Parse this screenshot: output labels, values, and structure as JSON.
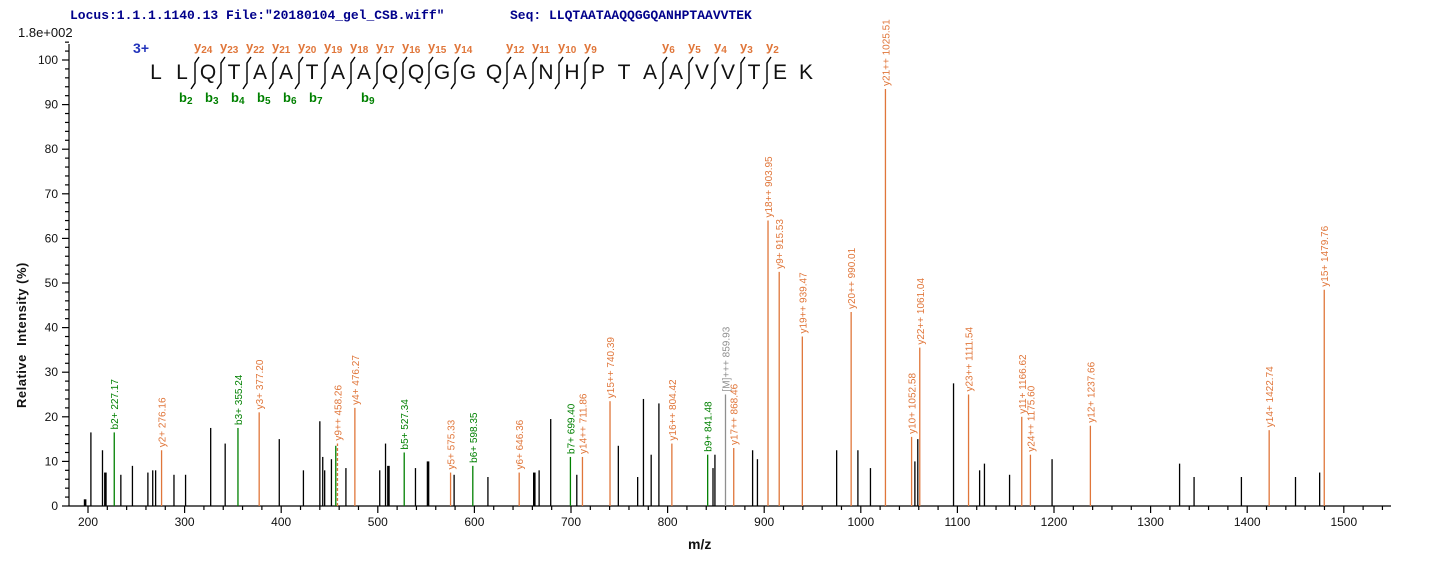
{
  "header": {
    "locus": "Locus:1.1.1.1140.13 File:\"20180104_gel_CSB.wiff\"",
    "seq": "Seq: LLQTAATAAQQGGQANHPTAAVVTEK"
  },
  "axes": {
    "max_label": "1.8e+002",
    "y_title": "Relative  Intensity (%)",
    "x_title": "m/z",
    "x_ticks": [
      200,
      300,
      400,
      500,
      600,
      700,
      800,
      900,
      1000,
      1100,
      1200,
      1300,
      1400,
      1500
    ],
    "y_ticks": [
      0,
      10,
      20,
      30,
      40,
      50,
      60,
      70,
      80,
      90,
      100
    ]
  },
  "colors": {
    "black": "#000000",
    "orange": "#e0763a",
    "green": "#008000",
    "gray": "#8f8f8f",
    "header": "#00008b",
    "charge": "#2233bb",
    "letter": "#111111"
  },
  "ladder": {
    "charge": "3+",
    "residues": [
      "L",
      "L",
      "Q",
      "T",
      "A",
      "A",
      "T",
      "A",
      "A",
      "Q",
      "Q",
      "G",
      "G",
      "Q",
      "A",
      "N",
      "H",
      "P",
      "T",
      "A",
      "A",
      "V",
      "V",
      "T",
      "E",
      "K"
    ],
    "y_ions": [
      {
        "num": 24,
        "cut": 2
      },
      {
        "num": 23,
        "cut": 3
      },
      {
        "num": 22,
        "cut": 4
      },
      {
        "num": 21,
        "cut": 5
      },
      {
        "num": 20,
        "cut": 6
      },
      {
        "num": 19,
        "cut": 7
      },
      {
        "num": 18,
        "cut": 8
      },
      {
        "num": 17,
        "cut": 9
      },
      {
        "num": 16,
        "cut": 10
      },
      {
        "num": 15,
        "cut": 11
      },
      {
        "num": 14,
        "cut": 12
      },
      {
        "num": 12,
        "cut": 14
      },
      {
        "num": 11,
        "cut": 15
      },
      {
        "num": 10,
        "cut": 16
      },
      {
        "num": 9,
        "cut": 17
      },
      {
        "num": 6,
        "cut": 20
      },
      {
        "num": 5,
        "cut": 21
      },
      {
        "num": 4,
        "cut": 22
      },
      {
        "num": 3,
        "cut": 23
      },
      {
        "num": 2,
        "cut": 24
      }
    ],
    "b_ions": [
      {
        "num": 2,
        "cut": 2
      },
      {
        "num": 3,
        "cut": 3
      },
      {
        "num": 4,
        "cut": 4
      },
      {
        "num": 5,
        "cut": 5
      },
      {
        "num": 6,
        "cut": 6
      },
      {
        "num": 7,
        "cut": 7
      },
      {
        "num": 9,
        "cut": 9
      }
    ]
  },
  "chart_data": {
    "type": "bar",
    "subtype": "ms2-stick-spectrum",
    "title": "",
    "xlabel": "m/z",
    "ylabel": "Relative  Intensity (%)",
    "xlim": [
      180,
      1550
    ],
    "ylim": [
      0,
      100
    ],
    "max_intensity_label": "1.8e+002",
    "peptide": "LLQTAATAAQQGGQANHPTAAVVTEK",
    "precursor_charge": "3+",
    "peaks": [
      {
        "mz": 197,
        "i": 1.5,
        "c": "black",
        "thick": true
      },
      {
        "mz": 203,
        "i": 16.5,
        "c": "black"
      },
      {
        "mz": 215,
        "i": 12.5,
        "c": "black"
      },
      {
        "mz": 218,
        "i": 7.5,
        "c": "black",
        "thick": true
      },
      {
        "mz": 227.17,
        "i": 16.5,
        "c": "green",
        "label": "b2+ 227.17"
      },
      {
        "mz": 234,
        "i": 7,
        "c": "black"
      },
      {
        "mz": 246,
        "i": 9,
        "c": "black"
      },
      {
        "mz": 262,
        "i": 7.5,
        "c": "black"
      },
      {
        "mz": 267,
        "i": 8,
        "c": "black"
      },
      {
        "mz": 270,
        "i": 8,
        "c": "black"
      },
      {
        "mz": 276.16,
        "i": 12.5,
        "c": "orange",
        "label": "y2+ 276.16"
      },
      {
        "mz": 289,
        "i": 7,
        "c": "black"
      },
      {
        "mz": 301,
        "i": 7,
        "c": "black"
      },
      {
        "mz": 327,
        "i": 17.5,
        "c": "black"
      },
      {
        "mz": 342,
        "i": 14,
        "c": "black"
      },
      {
        "mz": 355.24,
        "i": 17.5,
        "c": "green",
        "label": "b3+ 355.24"
      },
      {
        "mz": 377.2,
        "i": 21,
        "c": "orange",
        "label": "y3+ 377.20"
      },
      {
        "mz": 398,
        "i": 15,
        "c": "black"
      },
      {
        "mz": 423,
        "i": 8,
        "c": "black"
      },
      {
        "mz": 440,
        "i": 19,
        "c": "black"
      },
      {
        "mz": 443,
        "i": 11,
        "c": "black"
      },
      {
        "mz": 445,
        "i": 8,
        "c": "black"
      },
      {
        "mz": 452,
        "i": 10.5,
        "c": "black"
      },
      {
        "mz": 456.5,
        "i": 13.5,
        "c": "green"
      },
      {
        "mz": 458.26,
        "i": 14,
        "c": "orange",
        "label": "y9++ 458.26",
        "dashed": true
      },
      {
        "mz": 467,
        "i": 8.5,
        "c": "black"
      },
      {
        "mz": 476.27,
        "i": 22,
        "c": "orange",
        "label": "y4+ 476.27"
      },
      {
        "mz": 502,
        "i": 8,
        "c": "black"
      },
      {
        "mz": 508,
        "i": 14,
        "c": "black"
      },
      {
        "mz": 511,
        "i": 9,
        "c": "black",
        "thick": true
      },
      {
        "mz": 527.34,
        "i": 12,
        "c": "green",
        "label": "b5+ 527.34"
      },
      {
        "mz": 539,
        "i": 8.5,
        "c": "black"
      },
      {
        "mz": 552,
        "i": 10,
        "c": "black",
        "thick": true
      },
      {
        "mz": 575.33,
        "i": 7.5,
        "c": "orange",
        "label": "y5+ 575.33"
      },
      {
        "mz": 579,
        "i": 7,
        "c": "black"
      },
      {
        "mz": 598.35,
        "i": 9,
        "c": "green",
        "label": "b6+ 598.35"
      },
      {
        "mz": 614,
        "i": 6.5,
        "c": "black"
      },
      {
        "mz": 646.36,
        "i": 7.5,
        "c": "orange",
        "label": "y6+ 646.36"
      },
      {
        "mz": 662,
        "i": 7.5,
        "c": "black",
        "thick": true
      },
      {
        "mz": 667,
        "i": 8,
        "c": "black"
      },
      {
        "mz": 679,
        "i": 19.5,
        "c": "black"
      },
      {
        "mz": 699.4,
        "i": 11,
        "c": "green",
        "label": "b7+ 699.40"
      },
      {
        "mz": 706,
        "i": 7,
        "c": "black"
      },
      {
        "mz": 711.86,
        "i": 11,
        "c": "orange",
        "label": "y14++ 711.86"
      },
      {
        "mz": 740.39,
        "i": 23.5,
        "c": "orange",
        "label": "y15++ 740.39"
      },
      {
        "mz": 749,
        "i": 13.5,
        "c": "black"
      },
      {
        "mz": 769,
        "i": 6.5,
        "c": "black"
      },
      {
        "mz": 775,
        "i": 24,
        "c": "black"
      },
      {
        "mz": 783,
        "i": 11.5,
        "c": "black"
      },
      {
        "mz": 791,
        "i": 23,
        "c": "black"
      },
      {
        "mz": 804.42,
        "i": 14,
        "c": "orange",
        "label": "y16++ 804.42"
      },
      {
        "mz": 841.48,
        "i": 11.5,
        "c": "green",
        "label": "b9+ 841.48"
      },
      {
        "mz": 847,
        "i": 8.5,
        "c": "black"
      },
      {
        "mz": 849,
        "i": 11.5,
        "c": "black"
      },
      {
        "mz": 859.93,
        "i": 25,
        "c": "gray",
        "label": "[M]+++ 859.93"
      },
      {
        "mz": 868.46,
        "i": 13,
        "c": "orange",
        "label": "y17++ 868.46"
      },
      {
        "mz": 888,
        "i": 12.5,
        "c": "black"
      },
      {
        "mz": 893,
        "i": 10.5,
        "c": "black"
      },
      {
        "mz": 903.95,
        "i": 64,
        "c": "orange",
        "label": "y18++ 903.95"
      },
      {
        "mz": 915.53,
        "i": 52.5,
        "c": "orange",
        "label": "y9+ 915.53"
      },
      {
        "mz": 939.47,
        "i": 38,
        "c": "orange",
        "label": "y19++ 939.47"
      },
      {
        "mz": 975,
        "i": 12.5,
        "c": "black"
      },
      {
        "mz": 990.01,
        "i": 43.5,
        "c": "orange",
        "label": "y20++ 990.01"
      },
      {
        "mz": 997,
        "i": 12.5,
        "c": "black"
      },
      {
        "mz": 1010,
        "i": 8.5,
        "c": "black"
      },
      {
        "mz": 1025.51,
        "i": 93.5,
        "c": "orange",
        "label": "y21++ 1025.51"
      },
      {
        "mz": 1052.58,
        "i": 15.5,
        "c": "orange",
        "label": "y10+ 1052.58"
      },
      {
        "mz": 1056,
        "i": 10,
        "c": "black"
      },
      {
        "mz": 1059,
        "i": 15,
        "c": "black"
      },
      {
        "mz": 1061.04,
        "i": 35.5,
        "c": "orange",
        "label": "y22++ 1061.04"
      },
      {
        "mz": 1096,
        "i": 27.5,
        "c": "black"
      },
      {
        "mz": 1111.54,
        "i": 25,
        "c": "orange",
        "label": "y23++ 1111.54"
      },
      {
        "mz": 1123,
        "i": 8,
        "c": "black"
      },
      {
        "mz": 1128,
        "i": 9.5,
        "c": "black"
      },
      {
        "mz": 1154,
        "i": 7,
        "c": "black"
      },
      {
        "mz": 1166.62,
        "i": 20,
        "c": "orange",
        "label": "y11+ 1166.62"
      },
      {
        "mz": 1175.6,
        "i": 11.5,
        "c": "orange",
        "label": "y24++ 1175.60"
      },
      {
        "mz": 1198,
        "i": 10.5,
        "c": "black"
      },
      {
        "mz": 1237.66,
        "i": 18,
        "c": "orange",
        "label": "y12+ 1237.66"
      },
      {
        "mz": 1330,
        "i": 9.5,
        "c": "black"
      },
      {
        "mz": 1345,
        "i": 6.5,
        "c": "black"
      },
      {
        "mz": 1394,
        "i": 6.5,
        "c": "black"
      },
      {
        "mz": 1422.74,
        "i": 17,
        "c": "orange",
        "label": "y14+ 1422.74"
      },
      {
        "mz": 1450,
        "i": 6.5,
        "c": "black"
      },
      {
        "mz": 1475,
        "i": 7.5,
        "c": "black"
      },
      {
        "mz": 1479.76,
        "i": 48.5,
        "c": "orange",
        "label": "y15+ 1479.76"
      }
    ]
  }
}
